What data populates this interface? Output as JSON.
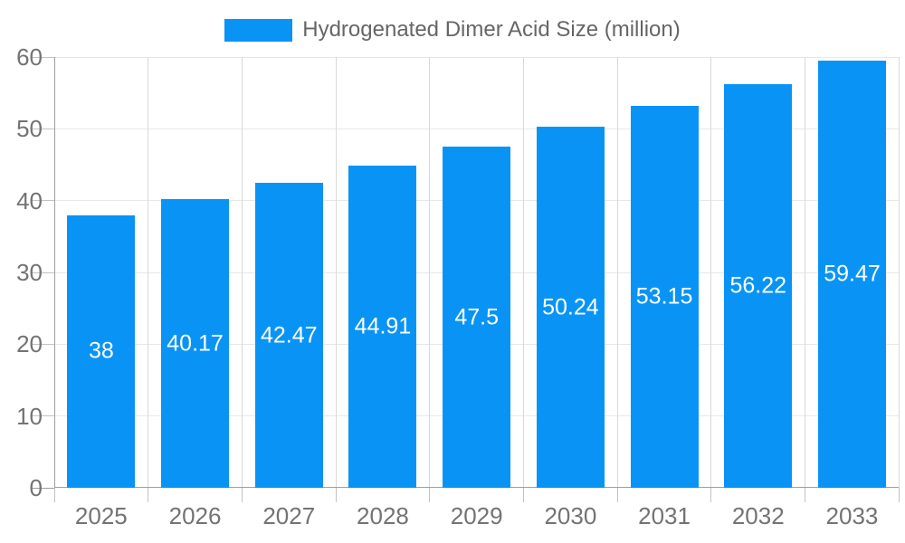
{
  "chart_data": {
    "type": "bar",
    "title": "Hydrogenated Dimer Acid Size (million)",
    "legend": {
      "position": "top",
      "marker": "rect",
      "entries": [
        "Hydrogenated Dimer Acid Size (million)"
      ]
    },
    "categories": [
      "2025",
      "2026",
      "2027",
      "2028",
      "2029",
      "2030",
      "2031",
      "2032",
      "2033"
    ],
    "values": [
      38,
      40.17,
      42.47,
      44.91,
      47.5,
      50.24,
      53.15,
      56.22,
      59.47
    ],
    "xlabel": "",
    "ylabel": "",
    "ylim": [
      0,
      60
    ],
    "yticks": [
      0,
      10,
      20,
      30,
      40,
      50,
      60
    ],
    "grid": true,
    "vertical_gridlines": true,
    "bar_value_labels_position": "inside-center",
    "colors": {
      "bar": "#0994f5",
      "value_label": "#ffffff",
      "axis_label": "#737373",
      "legend_text": "#666666",
      "grid_horizontal": "#e7e7e7",
      "grid_vertical": "#d9d9d9",
      "axis_line": "#9e9e9e",
      "tick": "#c2c2c2",
      "background": "#ffffff"
    }
  }
}
